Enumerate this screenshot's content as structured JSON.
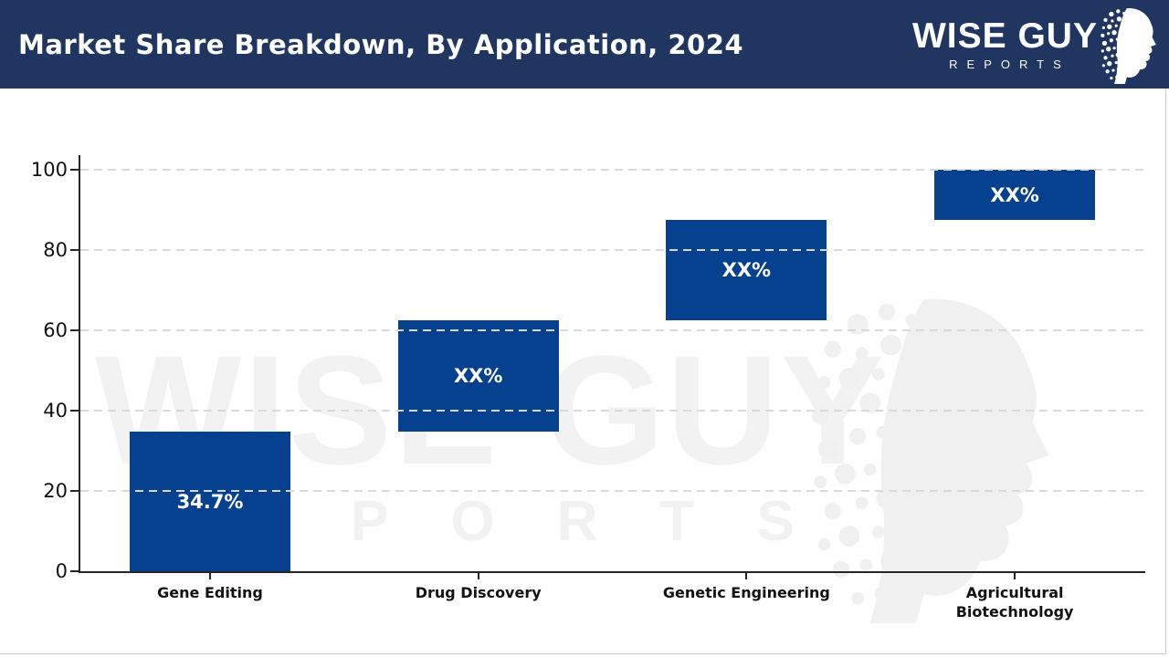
{
  "header": {
    "title": "Market Share Breakdown, By Application, 2024",
    "logo": {
      "brand": "WISE GUY",
      "sub": "REPORTS"
    }
  },
  "watermark": {
    "brand": "WISE GUY",
    "sub": "REPORTS"
  },
  "colors": {
    "header_bg": "#20355f",
    "bar": "#05418f",
    "grid": "#d9d9d9",
    "axis": "#262626",
    "value_label": "#ffffff",
    "watermark": "#f2f2f2"
  },
  "chart_data": {
    "type": "bar",
    "subtype": "waterfall",
    "title": "Market Share Breakdown, By Application, 2024",
    "categories": [
      "Gene Editing",
      "Drug Discovery",
      "Genetic Engineering",
      "Agricultural Biotechnology"
    ],
    "segments": [
      {
        "category": "Gene Editing",
        "start": 0,
        "end": 34.7,
        "label": "34.7%"
      },
      {
        "category": "Drug Discovery",
        "start": 34.7,
        "end": 62.5,
        "label": "XX%"
      },
      {
        "category": "Genetic Engineering",
        "start": 62.5,
        "end": 87.5,
        "label": "XX%"
      },
      {
        "category": "Agricultural Biotechnology",
        "start": 87.5,
        "end": 100,
        "label": "XX%"
      }
    ],
    "xlabel": "",
    "ylabel": "",
    "yticks": [
      0,
      20,
      40,
      60,
      80,
      100
    ],
    "ylim": [
      0,
      105
    ],
    "grid": "horizontal-dashed",
    "gridline_on_top_of_bars": true,
    "legend": "none",
    "bar_color": "#05418f",
    "value_label_color": "#ffffff"
  }
}
